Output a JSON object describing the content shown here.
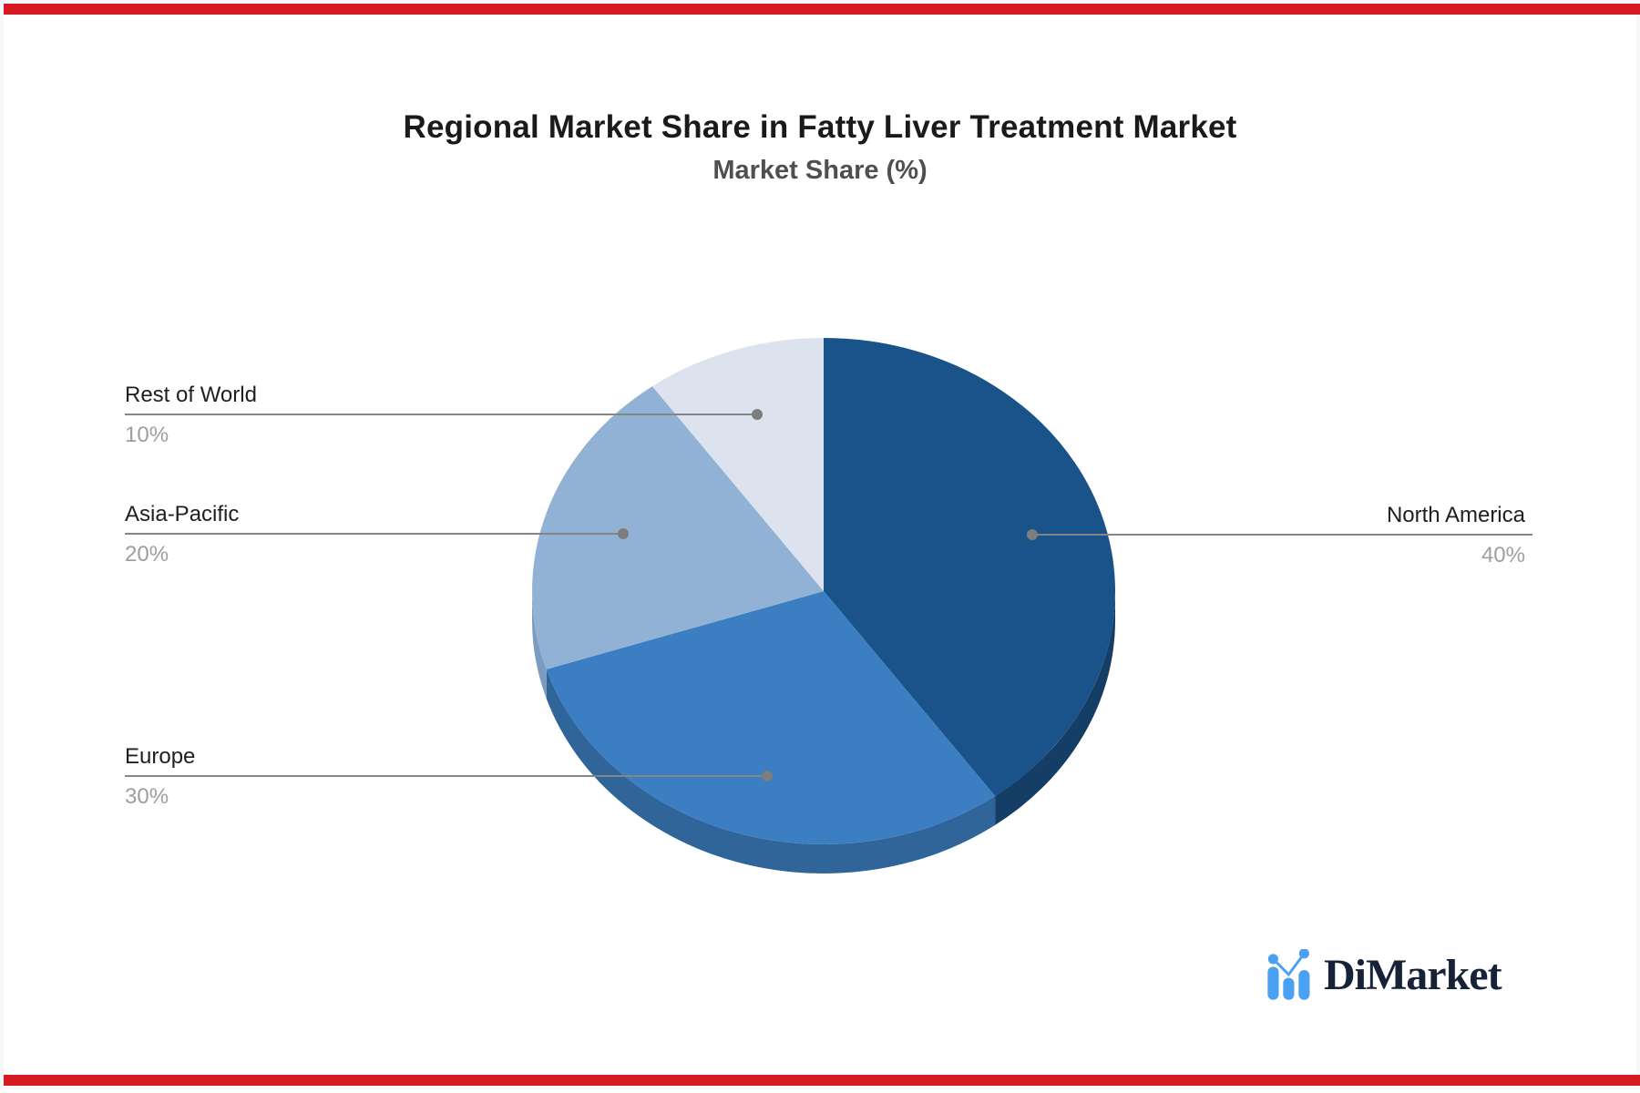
{
  "chart_data": {
    "type": "pie",
    "title": "Regional Market Share in Fatty Liver Treatment Market",
    "subtitle": "Market Share (%)",
    "unit": "%",
    "start_angle_deg": 0,
    "direction": "clockwise",
    "style": "3d",
    "background": "#ffffff",
    "leader_line_color": "#858585",
    "label_color": "#202020",
    "value_color": "#9e9e9e",
    "slices": [
      {
        "label": "North America",
        "value": 40,
        "display": "40%",
        "color": "#1a5389",
        "side_color": "#153e66"
      },
      {
        "label": "Europe",
        "value": 30,
        "display": "30%",
        "color": "#3b7ec1",
        "side_color": "#30659a"
      },
      {
        "label": "Asia-Pacific",
        "value": 20,
        "display": "20%",
        "color": "#92b2d5",
        "side_color": "#7b9cbf"
      },
      {
        "label": "Rest of World",
        "value": 10,
        "display": "10%",
        "color": "#dde3ee",
        "side_color": "#c3cede"
      }
    ]
  },
  "branding": {
    "logo_text": "DiMarket",
    "logo_icon": "bar-line-chart-icon",
    "logo_text_color": "#152238",
    "logo_icon_color": "#4aa0f2"
  },
  "decorations": {
    "top_bar_color": "#d61a23",
    "bottom_bar_color": "#d61a23"
  }
}
